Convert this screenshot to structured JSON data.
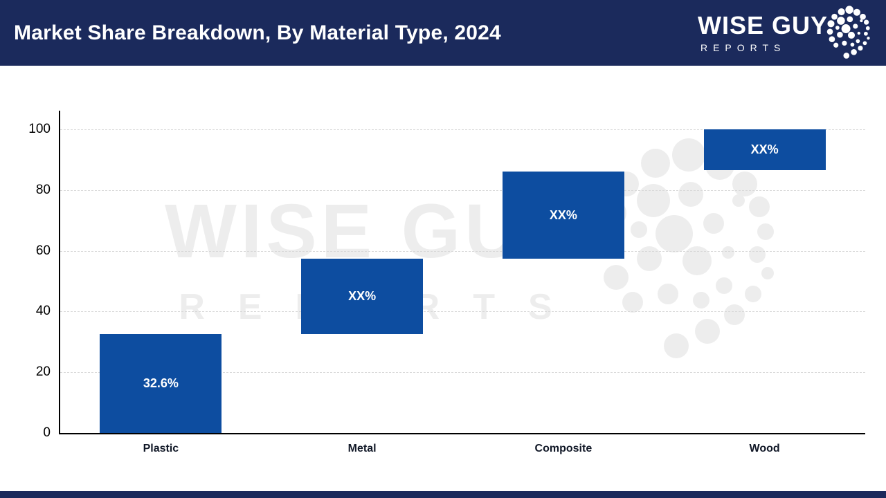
{
  "header": {
    "title": "Market Share Breakdown, By Material Type, 2024",
    "logo": {
      "line1": "WISE GUY",
      "line2": "REPORTS"
    }
  },
  "watermark": {
    "line1": "WISE GUY",
    "line2": "REPORTS"
  },
  "colors": {
    "header_bg": "#1b2a5c",
    "footer_bg": "#1b2a5c",
    "bar": "#0d4da0",
    "bar_label_text": "#ffffff",
    "watermark": "#ededed",
    "gridline": "#d8d8d8",
    "axis": "#000000"
  },
  "chart_data": {
    "type": "bar",
    "subtype": "waterfall",
    "title": "Market Share Breakdown, By Material Type, 2024",
    "categories": [
      "Plastic",
      "Metal",
      "Composite",
      "Wood"
    ],
    "bars": [
      {
        "category": "Plastic",
        "start": 0,
        "end": 32.6,
        "label": "32.6%"
      },
      {
        "category": "Metal",
        "start": 32.6,
        "end": 57.5,
        "label": "XX%"
      },
      {
        "category": "Composite",
        "start": 57.5,
        "end": 86,
        "label": "XX%"
      },
      {
        "category": "Wood",
        "start": 86.5,
        "end": 100,
        "label": "XX%"
      }
    ],
    "xlabel": "",
    "ylabel": "",
    "ylim": [
      0,
      100
    ],
    "yticks": [
      0,
      20,
      40,
      60,
      80,
      100
    ],
    "grid": "horizontal-dashed",
    "legend_position": "none",
    "bar_color": "#0d4da0"
  }
}
